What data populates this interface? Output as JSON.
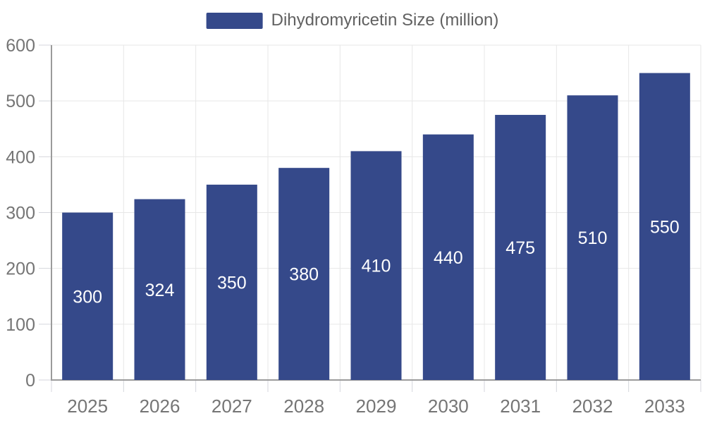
{
  "chart_data": {
    "type": "bar",
    "title": "",
    "legend": "Dihydromyricetin Size (million)",
    "legend_position": "top",
    "categories": [
      "2025",
      "2026",
      "2027",
      "2028",
      "2029",
      "2030",
      "2031",
      "2032",
      "2033"
    ],
    "series": [
      {
        "name": "Dihydromyricetin Size (million)",
        "values": [
          300,
          324,
          350,
          380,
          410,
          440,
          475,
          510,
          550
        ]
      }
    ],
    "xlabel": "",
    "ylabel": "",
    "ylim": [
      0,
      600
    ],
    "yticks": [
      0,
      100,
      200,
      300,
      400,
      500,
      600
    ],
    "grid": true,
    "bar_value_labels_inside": true,
    "colors": {
      "bar": "#35498a",
      "bar_label": "#ffffff",
      "axis_label": "#757575",
      "legend_text": "#616161",
      "grid_line": "#e7e7e7",
      "axis_line": "#9b9b9b",
      "tick": "#d4d6dc",
      "background": "#ffffff"
    }
  }
}
